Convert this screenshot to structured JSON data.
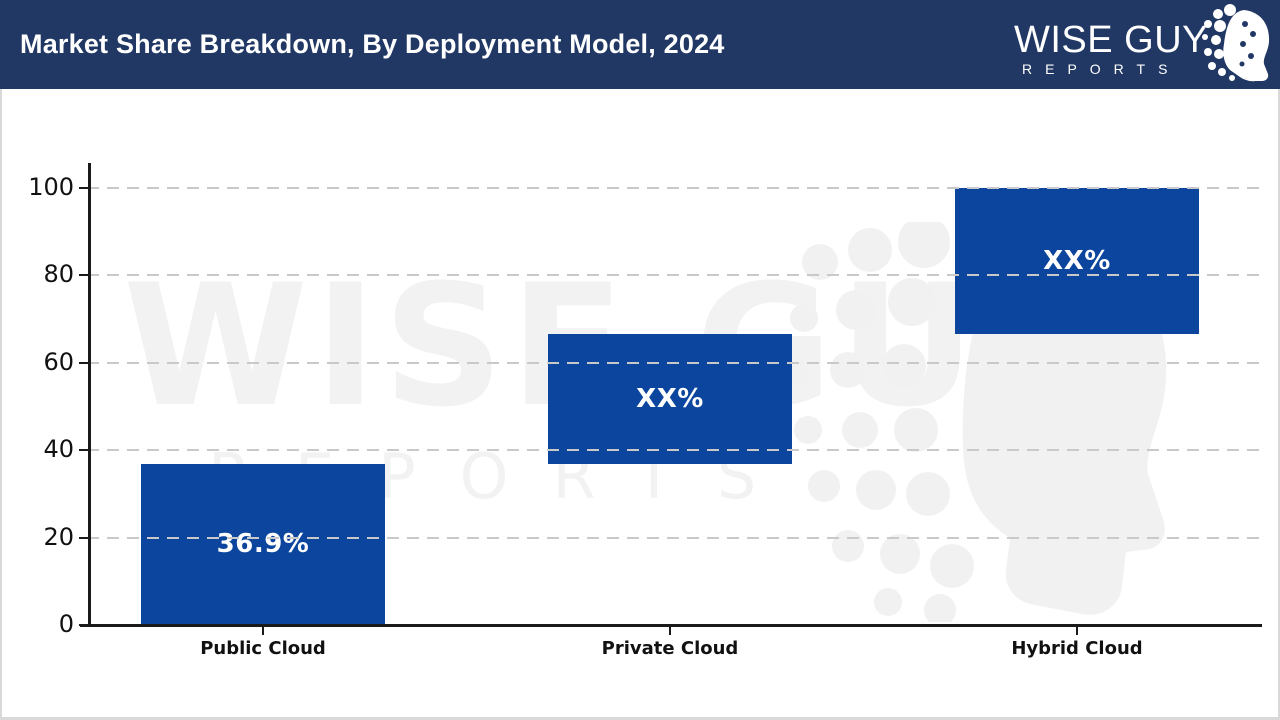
{
  "header": {
    "title": "Market Share Breakdown, By Deployment Model, 2024",
    "logo": {
      "primary": "WISE GUY",
      "secondary": "REPORTS"
    }
  },
  "watermark": {
    "primary": "WISE GUY",
    "secondary": "REPORTS"
  },
  "chart_data": {
    "type": "bar",
    "variant": "floating-segment-waterfall",
    "title": "Market Share Breakdown, By Deployment Model, 2024",
    "categories": [
      "Public Cloud",
      "Private Cloud",
      "Hybrid Cloud"
    ],
    "segments": [
      {
        "category": "Public Cloud",
        "start": 0,
        "end": 36.9,
        "label": "36.9%"
      },
      {
        "category": "Private Cloud",
        "start": 36.9,
        "end": 66.6,
        "label": "XX%"
      },
      {
        "category": "Hybrid Cloud",
        "start": 66.6,
        "end": 100,
        "label": "XX%"
      }
    ],
    "xlabel": "",
    "ylabel": "",
    "ylim": [
      0,
      100
    ],
    "yticks": [
      0,
      20,
      40,
      60,
      80,
      100
    ],
    "grid": "horizontal-dashed",
    "legend": "none",
    "colors": {
      "bar": "#0b459d",
      "bar_label": "#ffffff",
      "grid": "#c9c9c9",
      "axis": "#1a1a1a",
      "header_bg": "#213865",
      "watermark": "#f2f2f2"
    }
  }
}
